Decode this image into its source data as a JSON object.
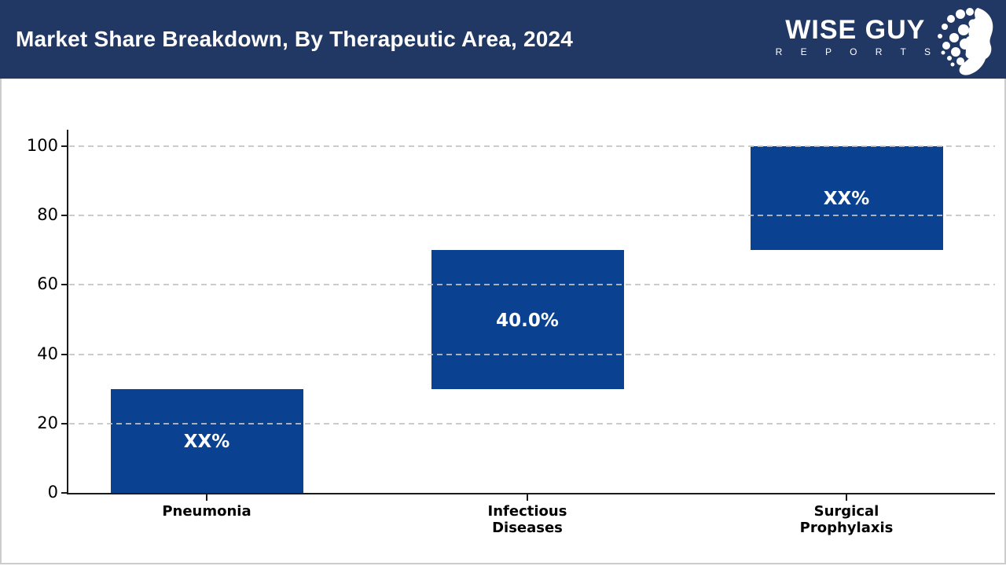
{
  "header": {
    "title": "Market Share Breakdown, By Therapeutic Area, 2024",
    "logo": {
      "line1": "WISE GUY",
      "line2": "R E P O R T S"
    }
  },
  "watermark": {
    "line1": "WISE GUY",
    "line2": "R E P O R T S"
  },
  "chart_data": {
    "type": "bar",
    "variant": "floating-waterfall",
    "title": "Market Share Breakdown, By Therapeutic Area, 2024",
    "categories": [
      "Pneumonia",
      "Infectious Diseases",
      "Surgical Prophylaxis"
    ],
    "category_lines": [
      [
        "Pneumonia"
      ],
      [
        "Infectious",
        "Diseases"
      ],
      [
        "Surgical",
        "Prophylaxis"
      ]
    ],
    "segments": [
      {
        "category": "Pneumonia",
        "start": 0,
        "end": 30,
        "label": "XX%"
      },
      {
        "category": "Infectious Diseases",
        "start": 30,
        "end": 70,
        "label": "40.0%"
      },
      {
        "category": "Surgical Prophylaxis",
        "start": 70,
        "end": 100,
        "label": "XX%"
      }
    ],
    "values_depicted": [
      30,
      40,
      30
    ],
    "xlabel": "",
    "ylabel": "",
    "yticks": [
      0,
      20,
      40,
      60,
      80,
      100
    ],
    "ylim": [
      0,
      105
    ],
    "grid": "dashed-horizontal",
    "legend": "none"
  },
  "colors": {
    "header_bg": "#213864",
    "bar": "#0b4191",
    "bar_label": "#ffffff",
    "axis": "#1a1a1a",
    "grid": "#c9c9c9",
    "panel_border": "#cccccc",
    "watermark": "#f1f1f1"
  }
}
